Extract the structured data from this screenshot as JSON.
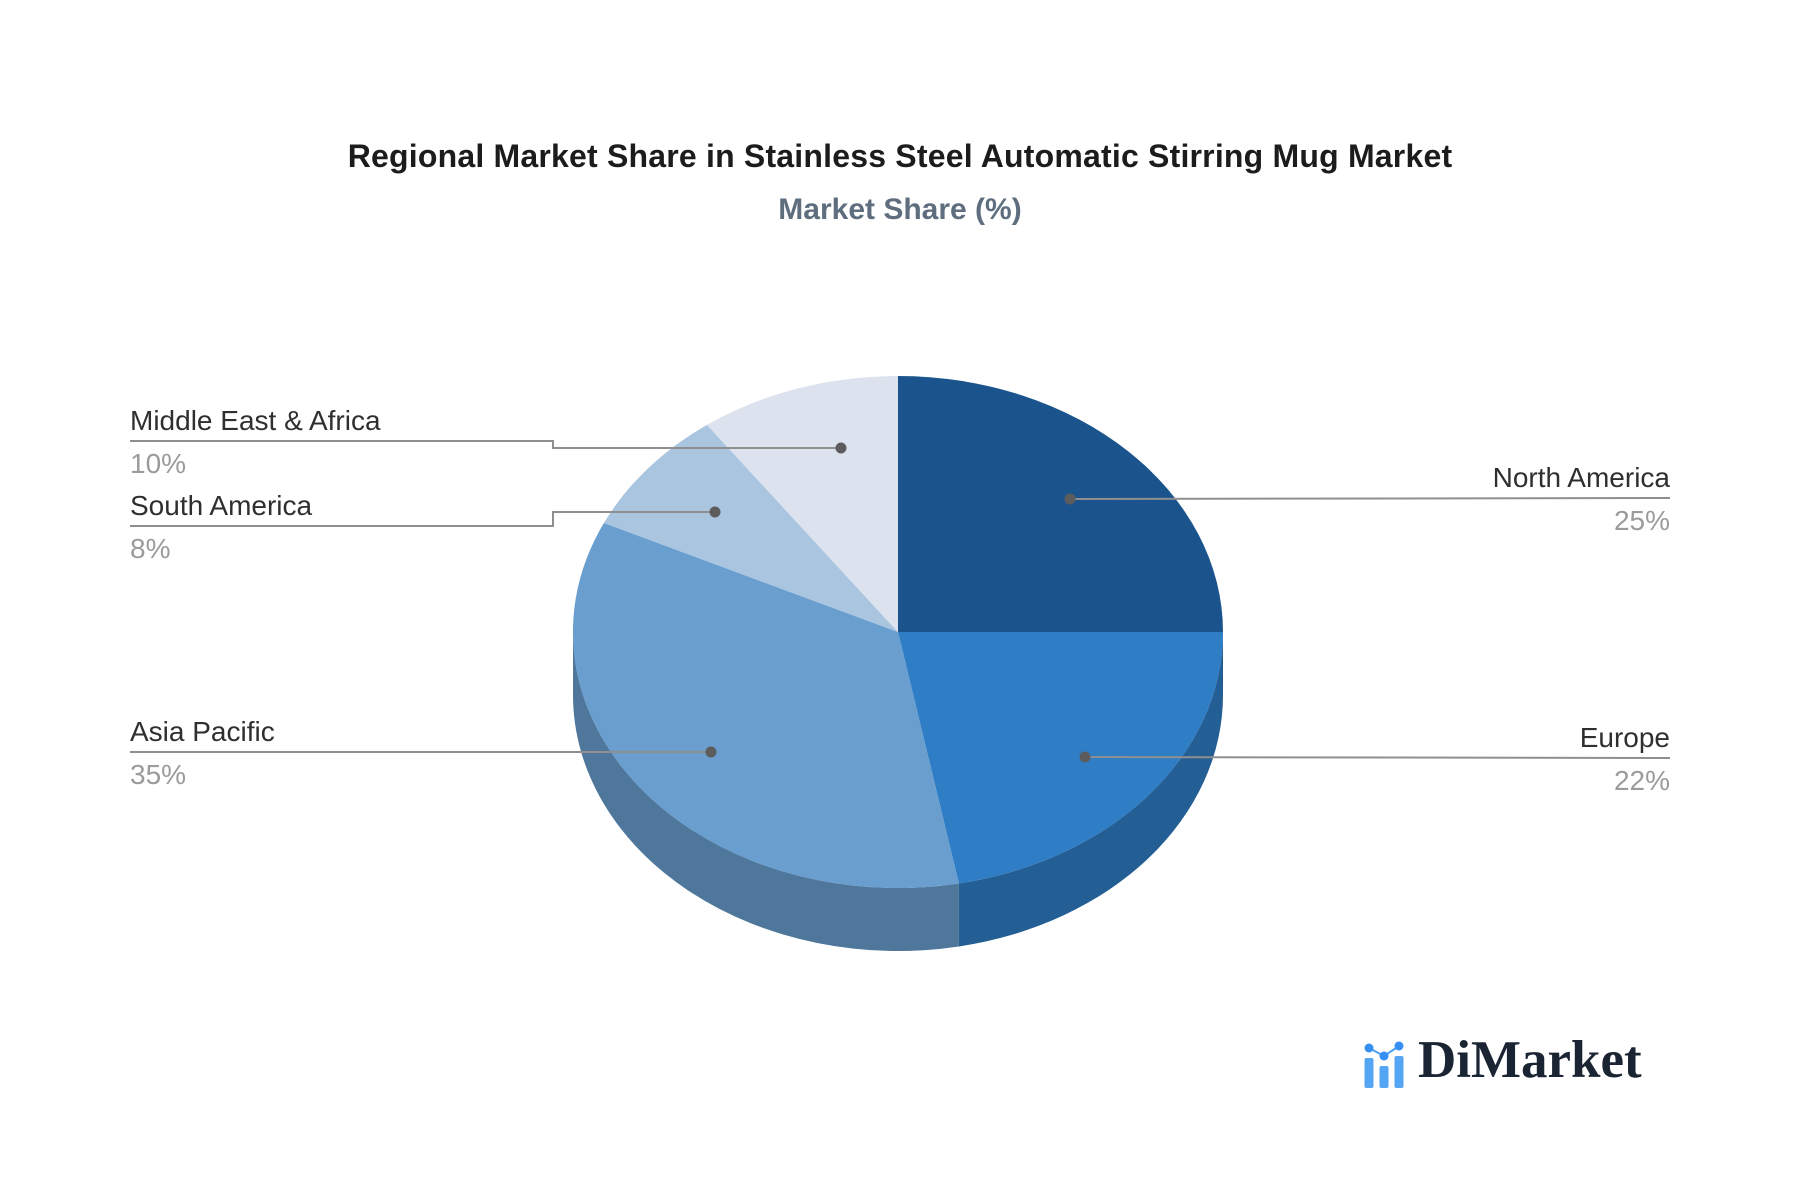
{
  "title": "Regional Market Share in Stainless Steel Automatic Stirring Mug Market",
  "subtitle": "Market Share (%)",
  "chart_data": {
    "type": "pie",
    "title": "Regional Market Share in Stainless Steel Automatic Stirring Mug Market",
    "subtitle": "Market Share (%)",
    "unit": "%",
    "style": "3d-pie",
    "start_angle": "top",
    "direction": "clockwise",
    "legend_position": "callout-labels",
    "slices": [
      {
        "label": "North America",
        "value": 25,
        "display": "25%",
        "color": "#1b548c",
        "side": "right"
      },
      {
        "label": "Europe",
        "value": 22,
        "display": "22%",
        "color": "#2e7dc5",
        "side": "right"
      },
      {
        "label": "Asia Pacific",
        "value": 35,
        "display": "35%",
        "color": "#699ecf",
        "side": "left"
      },
      {
        "label": "South America",
        "value": 8,
        "display": "8%",
        "color": "#a9c5e0",
        "side": "left"
      },
      {
        "label": "Middle East & Africa",
        "value": 10,
        "display": "10%",
        "color": "#dce3ee",
        "side": "left"
      }
    ]
  },
  "branding": {
    "logo_text": "DiMarket",
    "logo_icon": "bar-chart-icon",
    "logo_text_color": "#1b2433",
    "logo_icon_color": "#4a9ff4"
  },
  "colors": {
    "background": "#ffffff",
    "title_text": "#1c1c1c",
    "subtitle_text": "#5e6e7e",
    "label_text": "#2f2f2f",
    "percent_text": "#9b9b9b",
    "leader_line": "#8f8f8f",
    "leader_dot": "#5c5c5c"
  }
}
